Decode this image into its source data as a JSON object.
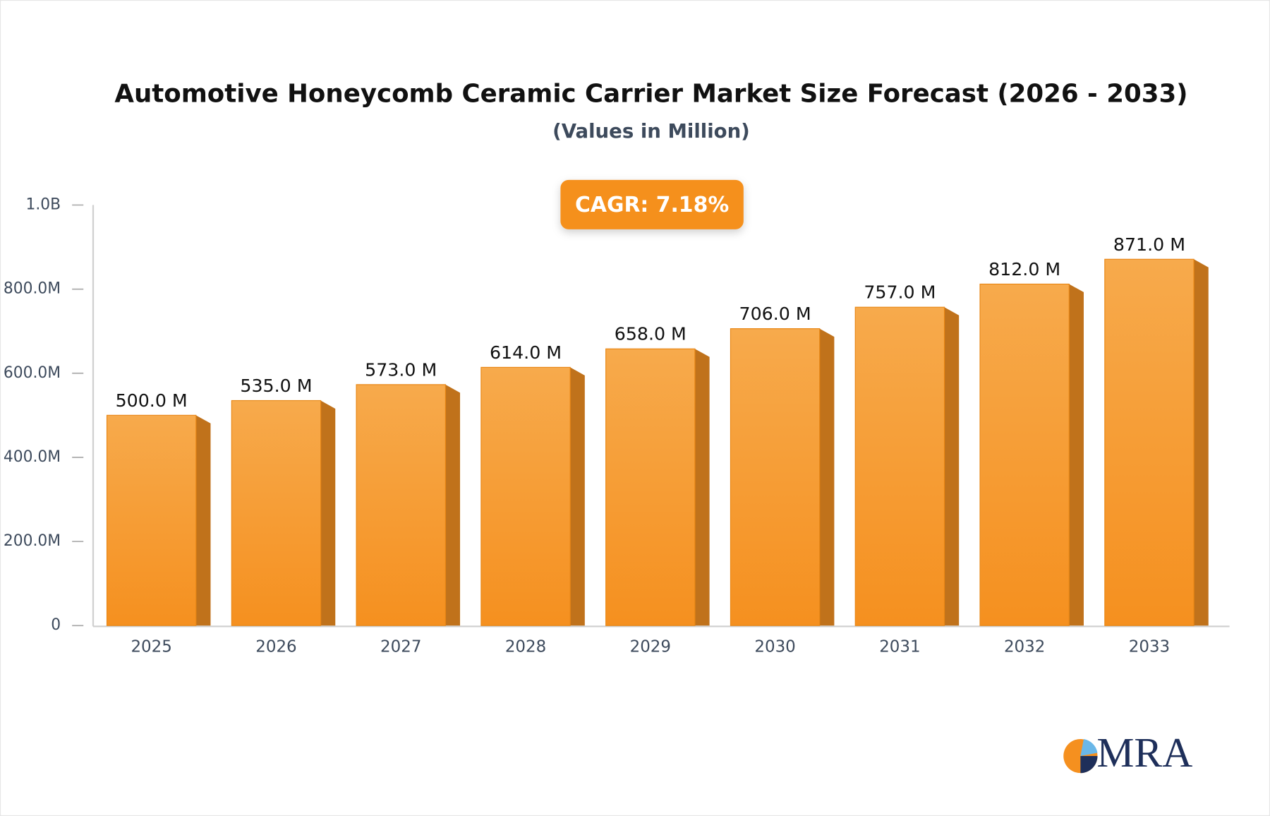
{
  "chart_data": {
    "type": "bar",
    "title": "Automotive Honeycomb Ceramic Carrier Market Size Forecast (2026 - 2033)",
    "subtitle": "(Values in Million)",
    "annotation": "CAGR: 7.18%",
    "logo": "MRA",
    "categories": [
      "2025",
      "2026",
      "2027",
      "2028",
      "2029",
      "2030",
      "2031",
      "2032",
      "2033"
    ],
    "values": [
      500,
      535,
      573,
      614,
      658,
      706,
      757,
      812,
      871
    ],
    "value_labels": [
      "500.0 M",
      "535.0 M",
      "573.0 M",
      "614.0 M",
      "658.0 M",
      "706.0 M",
      "757.0 M",
      "812.0 M",
      "871.0 M"
    ],
    "color": "#f5992f",
    "ylim": [
      0,
      1000
    ],
    "yticks": [
      0,
      {
        "value": 200,
        "label": "200.0M"
      },
      {
        "value": 400,
        "label": "400.0M"
      },
      {
        "value": 600,
        "label": "600.0M"
      },
      {
        "value": 800,
        "label": "800.0M"
      },
      {
        "value": 1000,
        "label": "1.0B"
      }
    ],
    "grid": false
  }
}
